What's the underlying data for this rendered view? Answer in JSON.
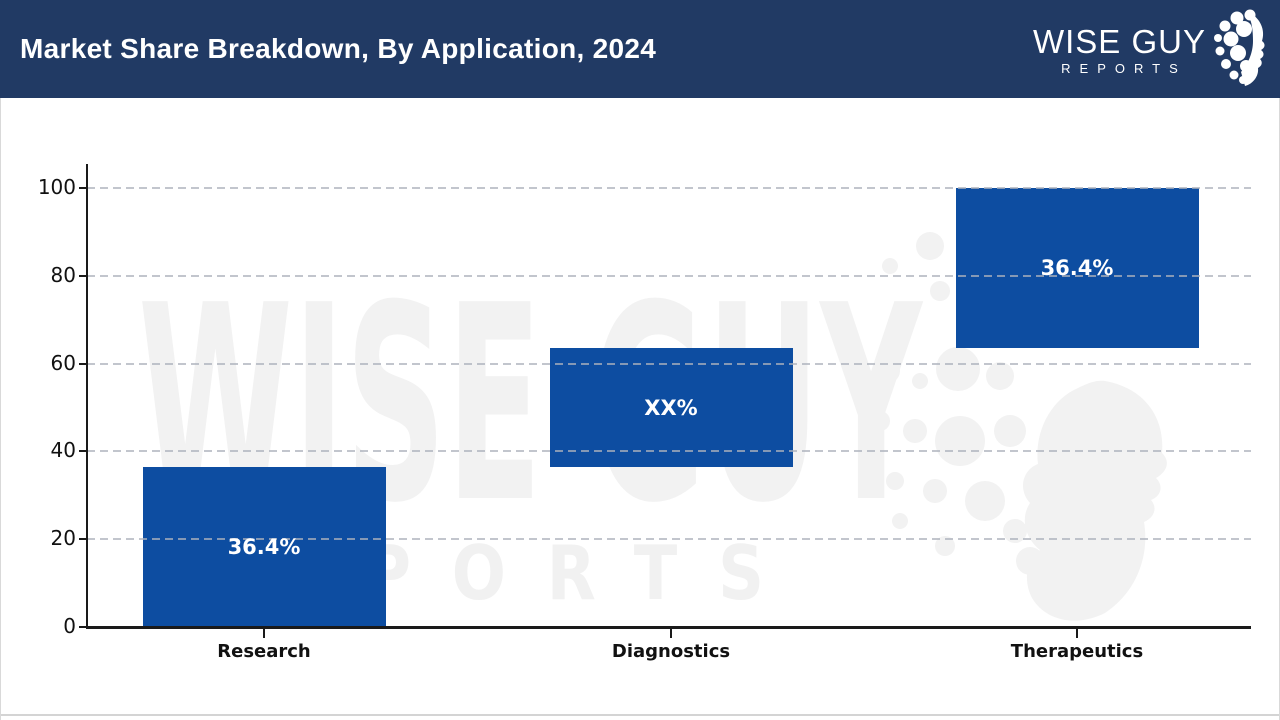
{
  "header": {
    "title": "Market Share Breakdown, By Application, 2024",
    "logo": {
      "line1": "WISE GUY",
      "line2": "REPORTS"
    }
  },
  "watermark": {
    "line1": "WISE GUY",
    "line2": "REPORTS"
  },
  "chart_data": {
    "type": "bar",
    "subtype": "floating-stacked-segments",
    "title": "Market Share Breakdown, By Application, 2024",
    "categories": [
      "Research",
      "Diagnostics",
      "Therapeutics"
    ],
    "bars": [
      {
        "category": "Research",
        "start": 0,
        "end": 36.4,
        "label": "36.4%"
      },
      {
        "category": "Diagnostics",
        "start": 36.4,
        "end": 63.6,
        "label": "XX%"
      },
      {
        "category": "Therapeutics",
        "start": 63.6,
        "end": 100,
        "label": "36.4%"
      }
    ],
    "ylim": [
      0,
      100
    ],
    "yticks": [
      0,
      20,
      40,
      60,
      80,
      100
    ],
    "grid": "horizontal-dashed",
    "legend": "none",
    "xlabel": "",
    "ylabel": ""
  },
  "colors": {
    "header_bg": "#213a64",
    "bar": "#0d4da1",
    "bar_label": "#ffffff",
    "axis": "#1a1a1a",
    "grid": "#c9cdd6",
    "watermark": "#f2f2f2"
  }
}
